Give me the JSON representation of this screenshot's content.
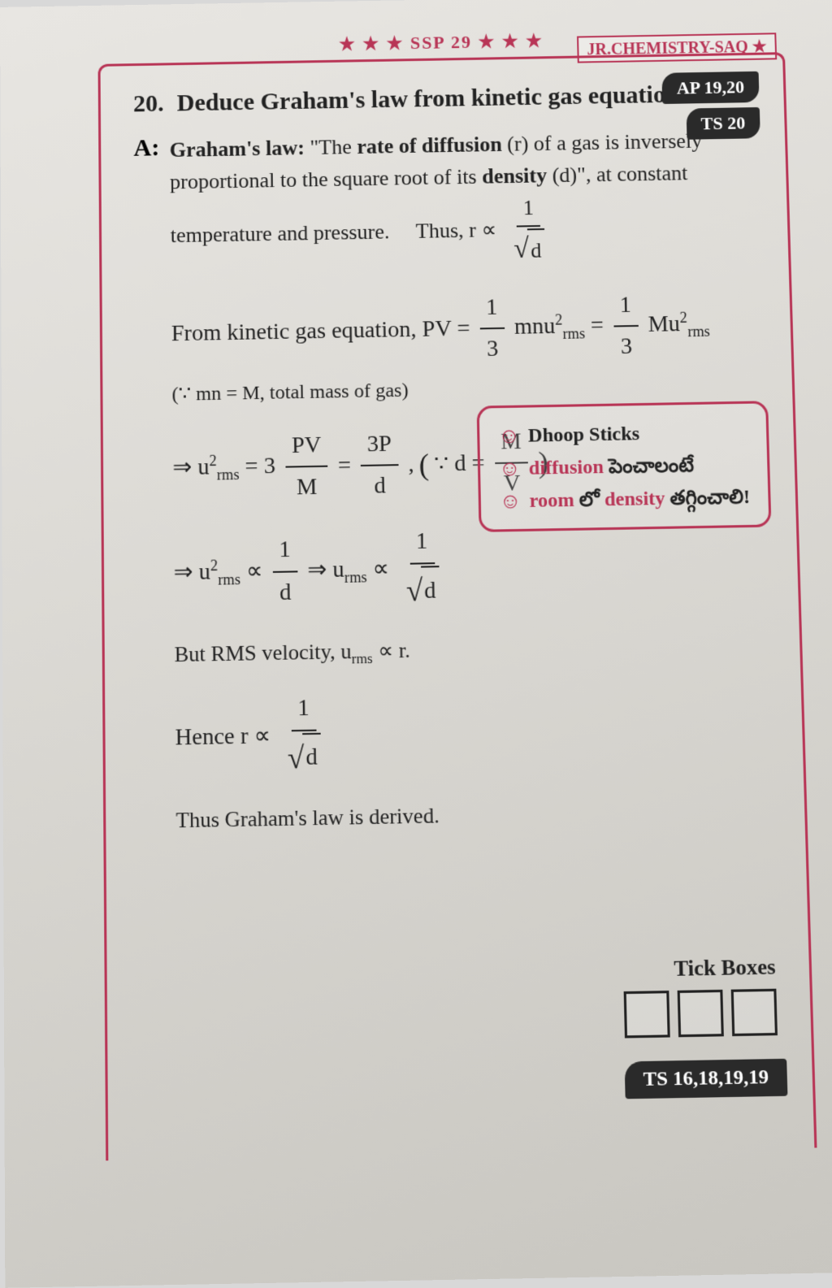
{
  "header": {
    "stars_text": "★ ★ ★ SSP 29 ★ ★ ★",
    "corner_label": "JR.CHEMISTRY-SAQ ★"
  },
  "question": {
    "number": "20.",
    "text": "Deduce Graham's law from kinetic gas equation.",
    "badges": [
      "AP 19,20",
      "TS 20"
    ]
  },
  "answer": {
    "label": "A:",
    "law_name": "Graham's law:",
    "law_text_1": "\"The ",
    "law_bold_1": "rate of diffusion",
    "law_text_2": " (r) of a gas is inversely proportional to the square root of its ",
    "law_bold_2": "density",
    "law_text_3": " (d)\", at constant temperature and pressure.",
    "thus_text": "Thus, r ∝",
    "kinetic_intro": "From kinetic gas equation, PV =",
    "kinetic_note": "(∵ mn = M, total mass of gas)",
    "d_note": "∵ d =",
    "rms_text": "But RMS velocity, u",
    "rms_sub": "rms",
    "rms_tail": " ∝ r.",
    "hence_text": "Hence r ∝",
    "conclusion": "Thus Graham's law is derived."
  },
  "mnemonic": {
    "line1_icon": "☺",
    "line1_bold": "Dhoop Sticks",
    "line2_icon": "☺",
    "line2_red": "diffusion",
    "line2_black": " పెంచాలంటే",
    "line3_icon": "☺",
    "line3_red": "room",
    "line3_black_1": " లో ",
    "line3_red_2": "density",
    "line3_black_2": " తగ్గించాలి!"
  },
  "tick": {
    "label": "Tick Boxes"
  },
  "footer": {
    "badge": "TS 16,18,19,19"
  },
  "colors": {
    "accent": "#b83556",
    "text": "#222222",
    "badge_bg": "#2a2a2a",
    "page_bg": "#dcdad5"
  }
}
